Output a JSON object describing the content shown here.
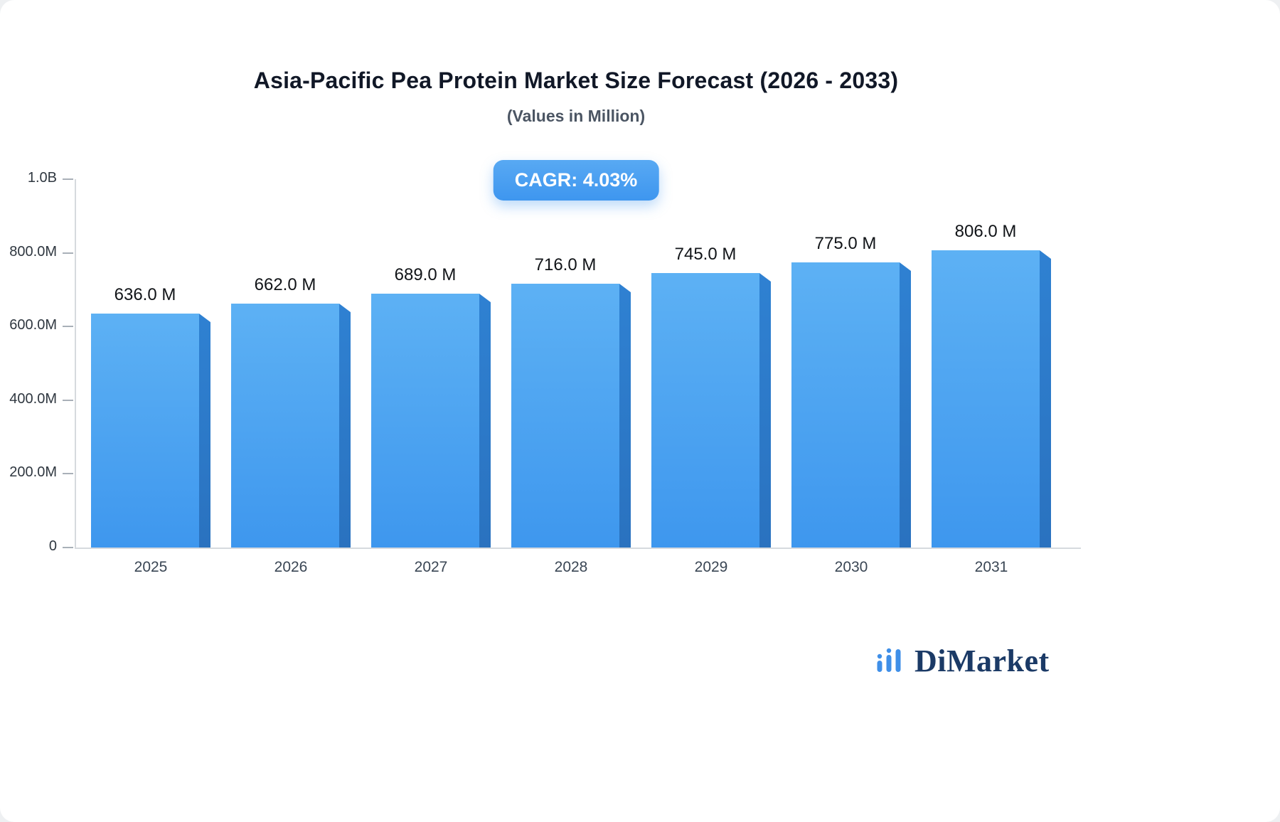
{
  "header": {
    "title": "Asia-Pacific Pea Protein Market Size Forecast (2026 - 2033)",
    "subtitle": "(Values in Million)"
  },
  "badge": {
    "label": "CAGR: 4.03%"
  },
  "logo": {
    "text": "DiMarket"
  },
  "chart_data": {
    "type": "bar",
    "title": "Asia-Pacific Pea Protein Market Size Forecast (2026 - 2033)",
    "subtitle": "(Values in Million)",
    "unit": "Million",
    "categories": [
      "2025",
      "2026",
      "2027",
      "2028",
      "2029",
      "2030",
      "2031"
    ],
    "values": [
      636,
      662,
      689,
      716,
      745,
      775,
      806
    ],
    "value_labels": [
      "636.0 M",
      "662.0 M",
      "689.0 M",
      "716.0 M",
      "745.0 M",
      "775.0 M",
      "806.0 M"
    ],
    "xlabel": "",
    "ylabel": "",
    "ylim": [
      0,
      1000
    ],
    "y_ticks": [
      {
        "value": 1000,
        "label": "1.0B"
      },
      {
        "value": 800,
        "label": "800.0M"
      },
      {
        "value": 600,
        "label": "600.0M"
      },
      {
        "value": 400,
        "label": "400.0M"
      },
      {
        "value": 200,
        "label": "200.0M"
      },
      {
        "value": 0,
        "label": "0"
      }
    ],
    "grid": false,
    "legend": false,
    "bar_color": "#3f9bef",
    "bar_side_color": "#2d7bca",
    "badge_color": "#459ff1"
  }
}
